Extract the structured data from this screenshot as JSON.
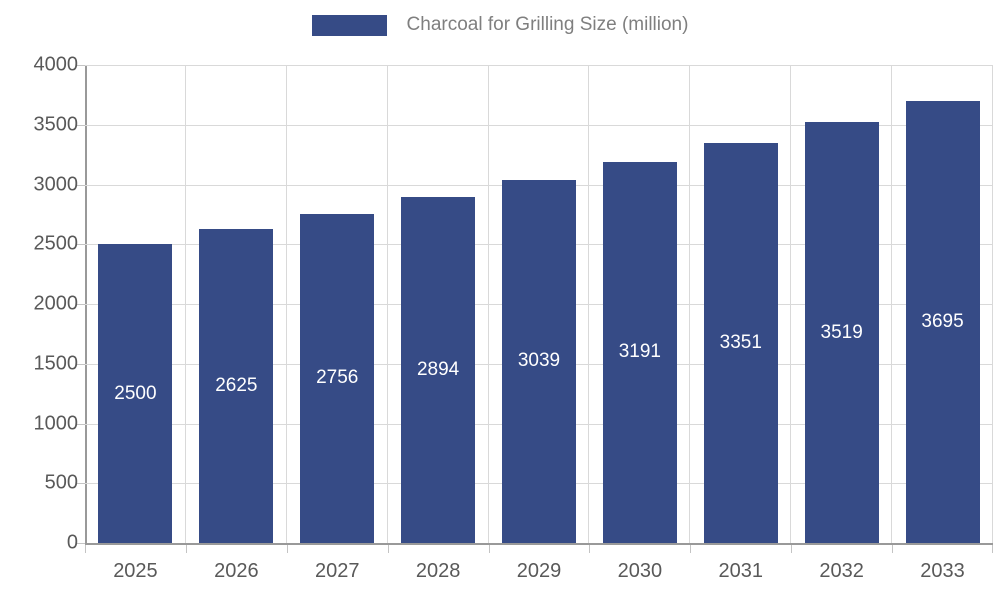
{
  "chart_data": {
    "type": "bar",
    "legend_label": "Charcoal for Grilling Size (million)",
    "categories": [
      "2025",
      "2026",
      "2027",
      "2028",
      "2029",
      "2030",
      "2031",
      "2032",
      "2033"
    ],
    "values": [
      2500,
      2625,
      2756,
      2894,
      3039,
      3191,
      3351,
      3519,
      3695
    ],
    "ylim": [
      0,
      4000
    ],
    "yticks": [
      0,
      500,
      1000,
      1500,
      2000,
      2500,
      3000,
      3500,
      4000
    ],
    "xlabel": "",
    "ylabel": "",
    "grid": true,
    "legend_position": "top-center",
    "bar_labels_inside": true,
    "colors": {
      "bar_fill": "#364B86",
      "bar_value_label": "#ffffff",
      "gridline": "#d9d9d9",
      "axis_line": "#999999",
      "tick_mark": "#c4c4c4",
      "tick_label": "#595959",
      "legend_text": "#7f7f7f",
      "background": "#ffffff"
    }
  }
}
